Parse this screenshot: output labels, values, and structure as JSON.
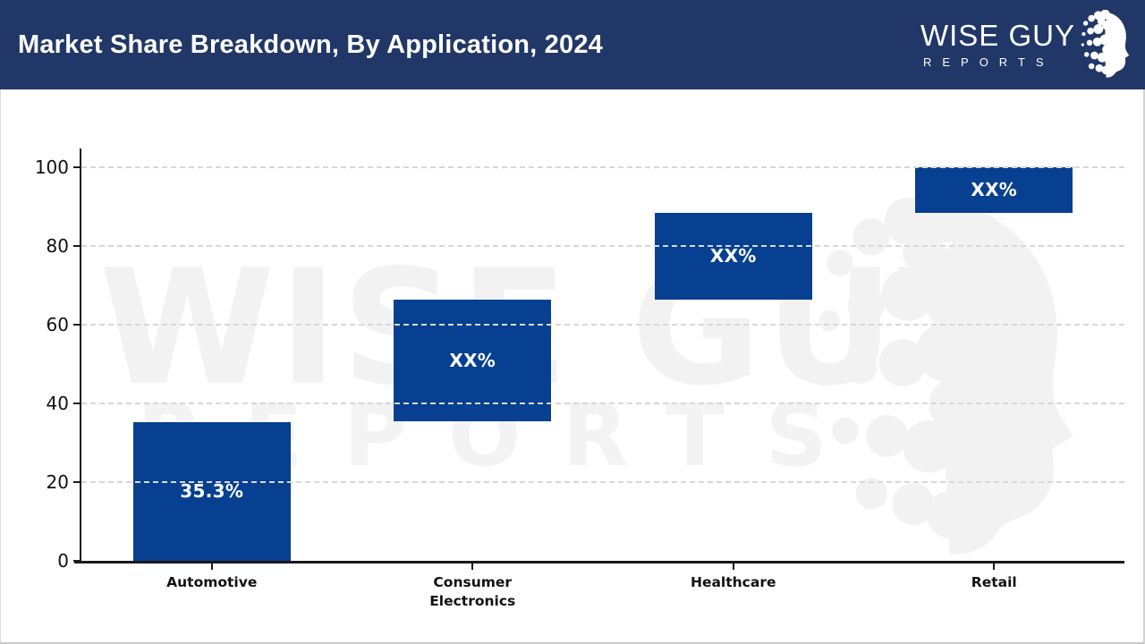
{
  "header": {
    "title": "Market Share Breakdown, By Application, 2024",
    "logo": {
      "wordmark": "WISE GUY",
      "subtext": "REPORTS"
    }
  },
  "watermark": {
    "wordmark": "WISE GUY",
    "subtext": "REPORTS"
  },
  "chart_data": {
    "type": "bar",
    "subtype": "waterfall",
    "title": "Market Share Breakdown, By Application, 2024",
    "categories": [
      "Automotive",
      "Consumer Electronics",
      "Healthcare",
      "Retail"
    ],
    "segments": [
      {
        "category": "Automotive",
        "start": 0,
        "end": 35.3,
        "label": "35.3%"
      },
      {
        "category": "Consumer Electronics",
        "start": 35.3,
        "end": 66.3,
        "label": "XX%"
      },
      {
        "category": "Healthcare",
        "start": 66.4,
        "end": 88.3,
        "label": "XX%"
      },
      {
        "category": "Retail",
        "start": 88.4,
        "end": 100,
        "label": "XX%"
      }
    ],
    "ylim": [
      0,
      100
    ],
    "yticks": [
      0,
      20,
      40,
      60,
      80,
      100
    ],
    "xlabel": "",
    "ylabel": "",
    "grid": "horizontal-dashed",
    "legend": null,
    "bar_color": "#074091",
    "bar_label_color": "#ffffff"
  },
  "colors": {
    "header_bg": "#213767",
    "axis": "#1a1a1a",
    "gridline": "#d8d8d8",
    "watermark": "#f2f2f2"
  }
}
